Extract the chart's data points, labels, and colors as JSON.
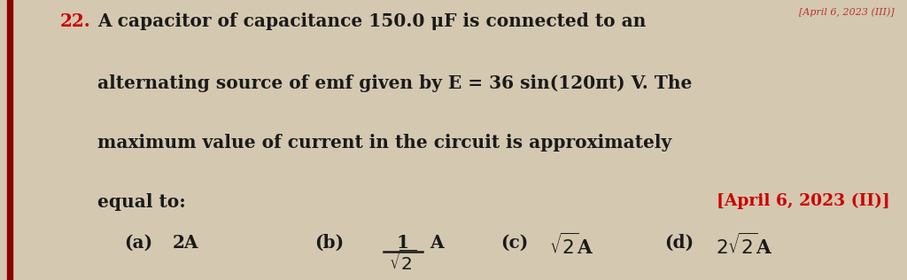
{
  "bg_color": "#d4c8b0",
  "text_color": "#1a1a1a",
  "red_color": "#cc0000",
  "dark_red": "#8b0000",
  "question_number": "22.",
  "line1": "A capacitor of capacitance 150.0 μF is connected to an",
  "line2": "alternating source of emf given by E = 36 sin(120πt) V. The",
  "line3": "maximum value of current in the circuit is approximately",
  "line4": "equal to:",
  "reference": "[April 6, 2023 (II)]",
  "figsize": [
    10.24,
    3.16
  ],
  "dpi": 100,
  "font_size": 14.5,
  "ref_font_size": 13.5
}
